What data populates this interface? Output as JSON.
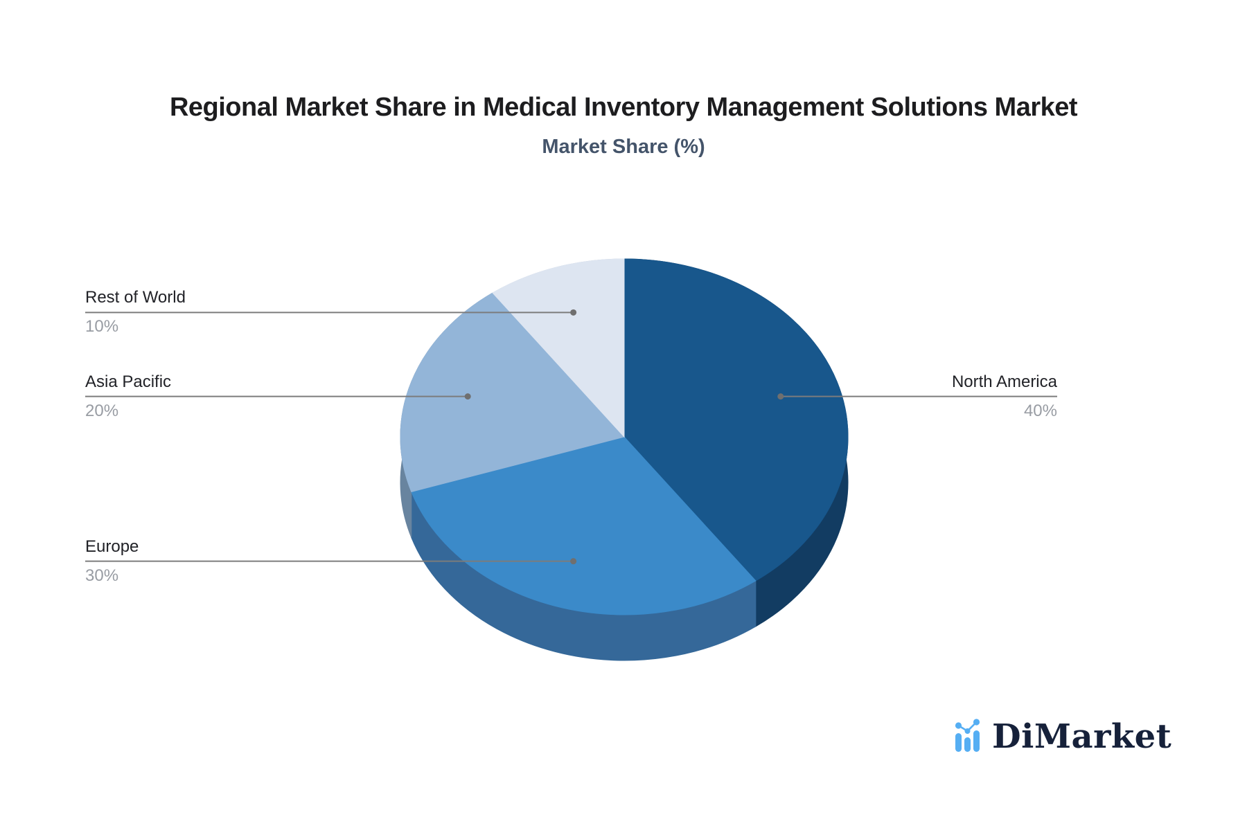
{
  "chart_data": {
    "type": "pie",
    "effect": "3d",
    "title": "Regional Market Share in Medical Inventory Management Solutions Market",
    "subtitle": "Market Share (%)",
    "unit": "%",
    "direction": "clockwise",
    "start_angle": "12-oclock",
    "legend": "none",
    "categories": [
      "North America",
      "Europe",
      "Asia Pacific",
      "Rest of World"
    ],
    "values": [
      40,
      30,
      20,
      10
    ],
    "slices": [
      {
        "label": "North America",
        "value": 40,
        "display_value": "40%",
        "color": "#18578C",
        "side_color": "#123C62",
        "label_side": "right"
      },
      {
        "label": "Europe",
        "value": 30,
        "display_value": "30%",
        "color": "#3B8AC9",
        "side_color": "#356899",
        "label_side": "left"
      },
      {
        "label": "Asia Pacific",
        "value": 20,
        "display_value": "20%",
        "color": "#93B5D8",
        "side_color": "#68849F",
        "label_side": "left"
      },
      {
        "label": "Rest of World",
        "value": 10,
        "display_value": "10%",
        "color": "#DDE5F1",
        "side_color": "#B6C1D2",
        "label_side": "left"
      }
    ],
    "label_style": {
      "name_color": "#212227",
      "value_color": "#989CA3",
      "leader_color": "#7C7C7C",
      "dot_color": "#6F6F6F"
    }
  },
  "header": {
    "title_color": "#1D1D1F",
    "subtitle_color": "#44546A"
  },
  "branding": {
    "logo_text": "DiMarket",
    "logo_text_color": "#16213A",
    "logo_icon_color": "#55AEF3",
    "logo_icon": "bar-chart-trend-icon"
  }
}
